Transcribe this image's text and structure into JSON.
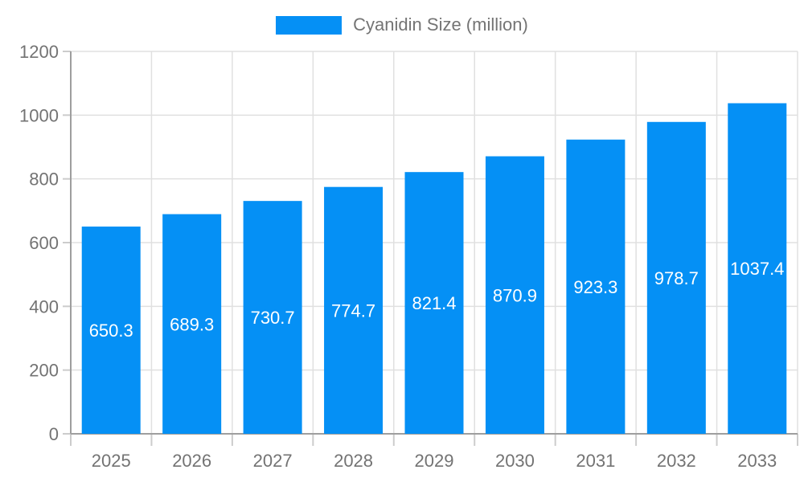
{
  "legend": {
    "label": "Cyanidin Size (million)"
  },
  "colors": {
    "bar": "#0590f5",
    "axis_line": "#9e9e9e",
    "grid_line": "#e0e0e0",
    "tick_line": "#cccccc",
    "axis_text": "#737373",
    "legend_text": "#747474",
    "value_label_text": "#ffffff",
    "background": "#ffffff"
  },
  "chart_data": {
    "type": "bar",
    "title": "",
    "xlabel": "",
    "ylabel": "",
    "categories": [
      "2025",
      "2026",
      "2027",
      "2028",
      "2029",
      "2030",
      "2031",
      "2032",
      "2033"
    ],
    "series": [
      {
        "name": "Cyanidin Size (million)",
        "values": [
          650.3,
          689.3,
          730.7,
          774.7,
          821.4,
          870.9,
          923.3,
          978.7,
          1037.4
        ]
      }
    ],
    "ylim": [
      0,
      1200
    ],
    "yticks": [
      0,
      200,
      400,
      600,
      800,
      1000,
      1200
    ],
    "grid": true,
    "legend_position": "top",
    "value_labels": "inside-center"
  }
}
